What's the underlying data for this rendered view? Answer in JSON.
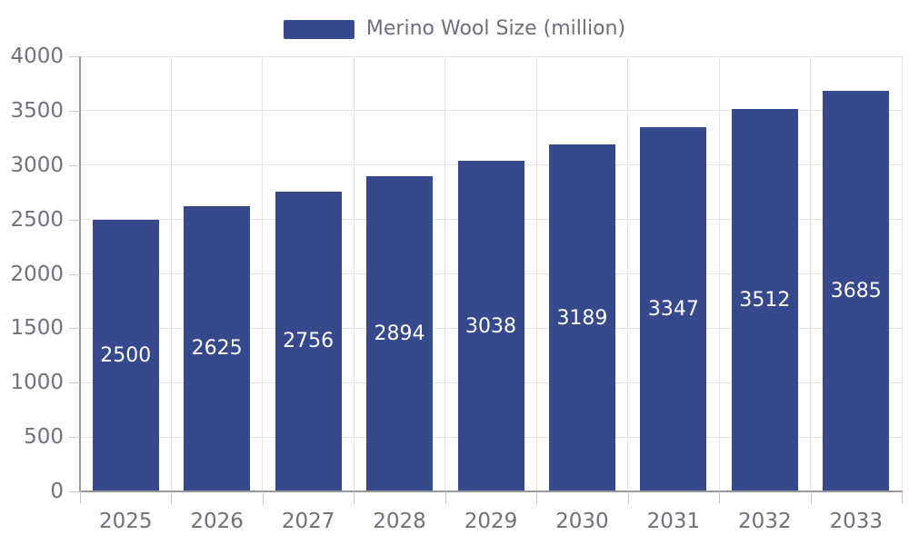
{
  "legend": {
    "label": "Merino Wool Size (million)"
  },
  "chart_data": {
    "type": "bar",
    "title": "",
    "xlabel": "",
    "ylabel": "",
    "categories": [
      "2025",
      "2026",
      "2027",
      "2028",
      "2029",
      "2030",
      "2031",
      "2032",
      "2033"
    ],
    "series": [
      {
        "name": "Merino Wool Size (million)",
        "values": [
          2500,
          2625,
          2756,
          2894,
          3038,
          3189,
          3347,
          3512,
          3685
        ]
      }
    ],
    "data_labels": [
      "2500",
      "2625",
      "2756",
      "2894",
      "3038",
      "3189",
      "3347",
      "3512",
      "3685"
    ],
    "data_label_position": "inside-center",
    "ylim": [
      0,
      4000
    ],
    "ytick_step": 500,
    "y_tick_labels": [
      "0",
      "500",
      "1000",
      "1500",
      "2000",
      "2500",
      "3000",
      "3500",
      "4000"
    ],
    "grid": true,
    "legend_position": "top-center",
    "colors": {
      "bar": "#36498C",
      "bar_label": "#ffffff",
      "axis_text": "#70717A",
      "legend_text": "#6E7079",
      "grid_line": "#E4E4E8",
      "axis_line": "#97979C",
      "tick_line": "#C9C9CE",
      "background": "#ffffff"
    }
  }
}
